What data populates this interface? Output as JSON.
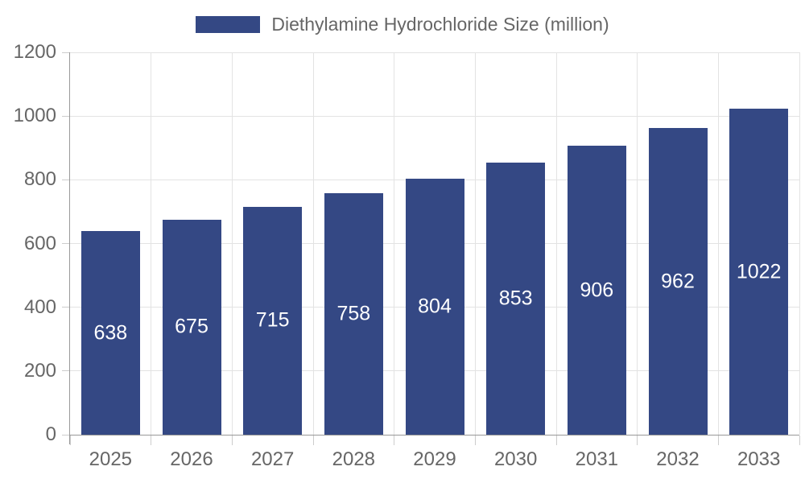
{
  "legend": {
    "label": "Diethylamine Hydrochloride Size (million)"
  },
  "palette": {
    "bar": "#344884",
    "bar_label": "#ffffff",
    "grid": "#e3e3e3",
    "tick": "#cccccc",
    "axis_line": "#999999",
    "text": "#666666"
  },
  "chart_data": {
    "type": "bar",
    "title": "",
    "xlabel": "",
    "ylabel": "",
    "categories": [
      "2025",
      "2026",
      "2027",
      "2028",
      "2029",
      "2030",
      "2031",
      "2032",
      "2033"
    ],
    "values": [
      638,
      675,
      715,
      758,
      804,
      853,
      906,
      962,
      1022
    ],
    "series_name": "Diethylamine Hydrochloride Size (million)",
    "ylim": [
      0,
      1200
    ],
    "yticks": [
      0,
      200,
      400,
      600,
      800,
      1000,
      1200
    ],
    "grid": true,
    "legend_position": "top",
    "bar_value_labels": true
  }
}
